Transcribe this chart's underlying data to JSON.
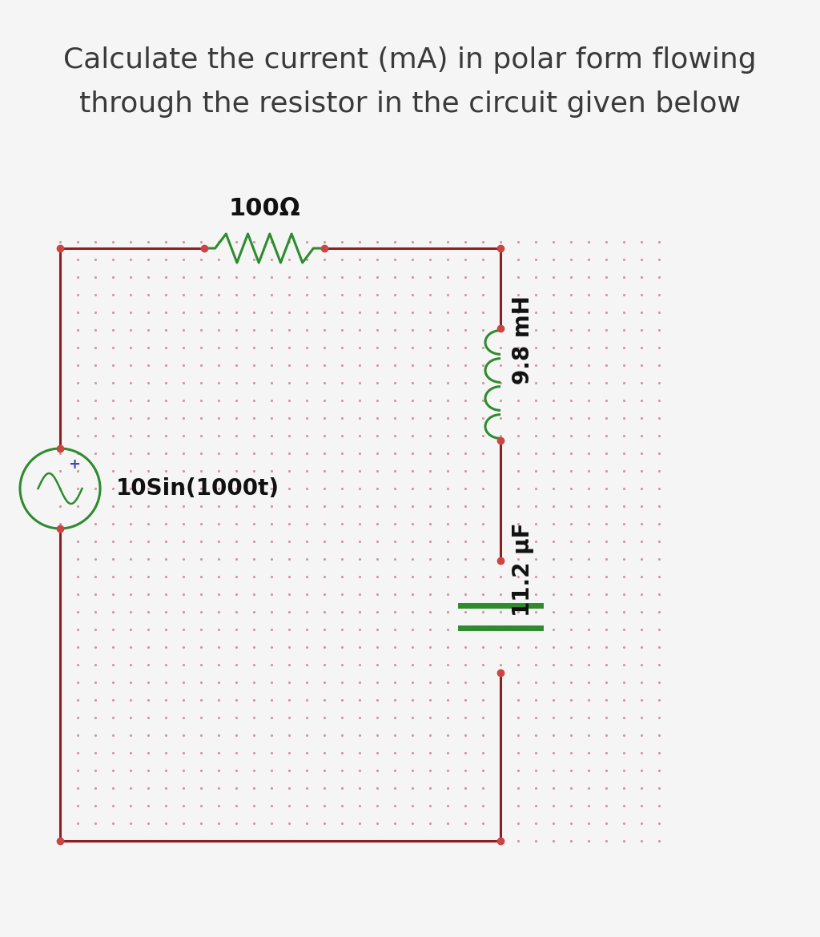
{
  "title_line1": "Calculate the current (mA) in polar form flowing",
  "title_line2": "through the resistor in the circuit given below",
  "title_fontsize": 26,
  "title_color": "#3a3a3a",
  "bg_color": "#f5f5f5",
  "wire_color": "#8B2020",
  "comp_color": "#2E8B2E",
  "dot_color": "#cc9999",
  "junction_color": "#cc4444",
  "resistor_label": "100Ω",
  "inductor_label": "9.8 mH",
  "capacitor_label": "11.2 μF",
  "source_label": "10Sin(1000t)",
  "label_fontsize": 20,
  "label_color": "#111111",
  "plus_color": "#4444bb"
}
